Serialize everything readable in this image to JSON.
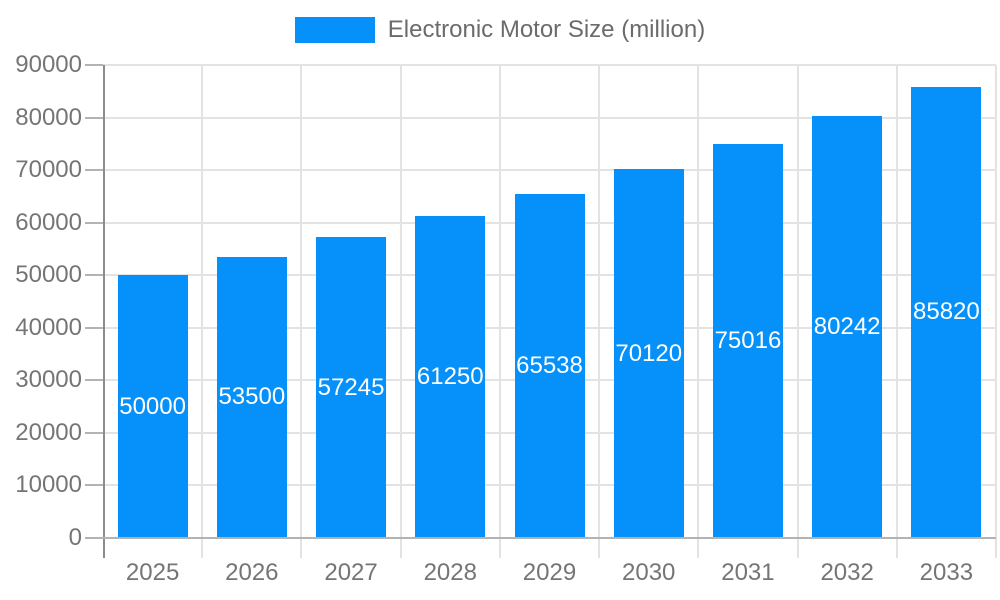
{
  "chart_data": {
    "type": "bar",
    "legend": [
      "Electronic Motor Size (million)"
    ],
    "legend_position": "top",
    "categories": [
      "2025",
      "2026",
      "2027",
      "2028",
      "2029",
      "2030",
      "2031",
      "2032",
      "2033"
    ],
    "values": [
      50000,
      53500,
      57245,
      61250,
      65538,
      70120,
      75016,
      80242,
      85820
    ],
    "bar_labels": [
      "50000",
      "53500",
      "57245",
      "61250",
      "65538",
      "70120",
      "75016",
      "80242",
      "85820"
    ],
    "xlabel": "",
    "ylabel": "",
    "ylim": [
      0,
      90000
    ],
    "y_ticks": [
      0,
      10000,
      20000,
      30000,
      40000,
      50000,
      60000,
      70000,
      80000,
      90000
    ],
    "y_tick_labels": [
      "0",
      "10000",
      "20000",
      "30000",
      "40000",
      "50000",
      "60000",
      "70000",
      "80000",
      "90000"
    ],
    "grid": true,
    "colors": {
      "bar": "#0590fa",
      "bar_label_text": "#ffffff",
      "axis_text": "#757575",
      "legend_text": "#6b6b6b",
      "gridline": "#e3e3e3",
      "axis_line_y": "#8c8c8c",
      "axis_line_x": "#b3b3b3",
      "tick": "#b3b3b3",
      "background": "#ffffff"
    }
  }
}
